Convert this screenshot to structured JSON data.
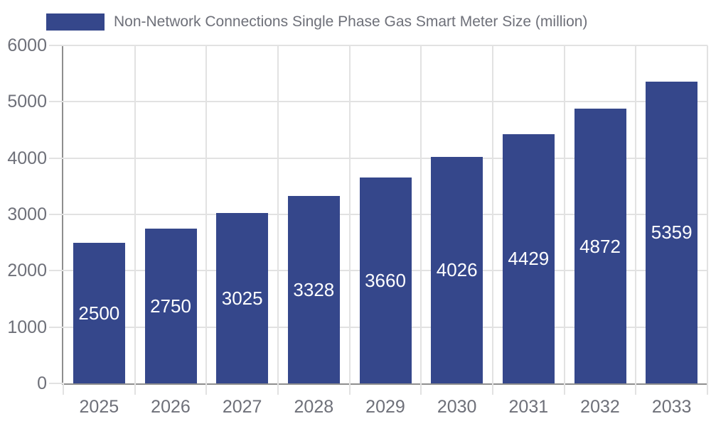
{
  "chart_data": {
    "type": "bar",
    "title": "Non-Network Connections Single Phase Gas Smart Meter Size (million)",
    "categories": [
      "2025",
      "2026",
      "2027",
      "2028",
      "2029",
      "2030",
      "2031",
      "2032",
      "2033"
    ],
    "series": [
      {
        "name": "Non-Network Connections Single Phase Gas Smart Meter Size (million)",
        "values": [
          2500,
          2750,
          3025,
          3328,
          3660,
          4026,
          4429,
          4872,
          5359
        ]
      }
    ],
    "xlabel": "",
    "ylabel": "",
    "ylim": [
      0,
      6000
    ],
    "ytick_step": 1000,
    "ytick_labels": [
      "0",
      "1000",
      "2000",
      "3000",
      "4000",
      "5000",
      "6000"
    ],
    "grid": true,
    "legend_position": "top-left",
    "value_labels_position": "inside-center",
    "colors": {
      "bar": "#35478B",
      "bar_value_label": "#ffffff",
      "axis_line": "#8E8E8E",
      "grid_line": "#E2E2E2",
      "tick_label": "#6E7079",
      "legend_text": "#6E7079",
      "background": "#ffffff"
    }
  }
}
